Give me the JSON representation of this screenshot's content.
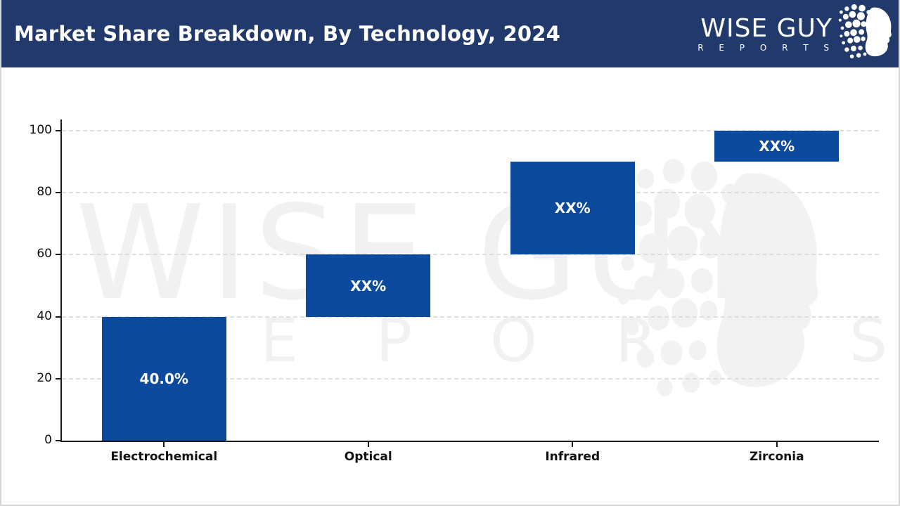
{
  "header": {
    "title": "Market Share Breakdown, By Technology, 2024",
    "bg_color": "#223A6B",
    "logo_line1": "WISE GUY",
    "logo_line2": "R E P O R T S"
  },
  "watermark": {
    "line1": "WISE GUY",
    "line2": "R E P O R T S"
  },
  "chart_data": {
    "type": "bar",
    "subtype": "waterfall",
    "title": "Market Share Breakdown, By Technology, 2024",
    "categories": [
      "Electrochemical",
      "Optical",
      "Infrared",
      "Zirconia"
    ],
    "series": [
      {
        "name": "Market share (%)",
        "segment_values": [
          40,
          20,
          30,
          10
        ],
        "ranges": [
          [
            0,
            40
          ],
          [
            40,
            60
          ],
          [
            60,
            90
          ],
          [
            90,
            100
          ]
        ]
      }
    ],
    "bar_labels": [
      "40.0%",
      "XX%",
      "XX%",
      "XX%"
    ],
    "xlabel": "",
    "ylabel": "",
    "ylim": [
      0,
      100
    ],
    "yticks": [
      0,
      20,
      40,
      60,
      80,
      100
    ],
    "grid": "horizontal-dashed",
    "legend": "none",
    "bar_color": "#0C4A9E",
    "grid_color": "#DEDEDE",
    "axis_color": "#1A1A1A",
    "tick_label_color": "#111111",
    "value_label_color": "#FFFFFF"
  }
}
